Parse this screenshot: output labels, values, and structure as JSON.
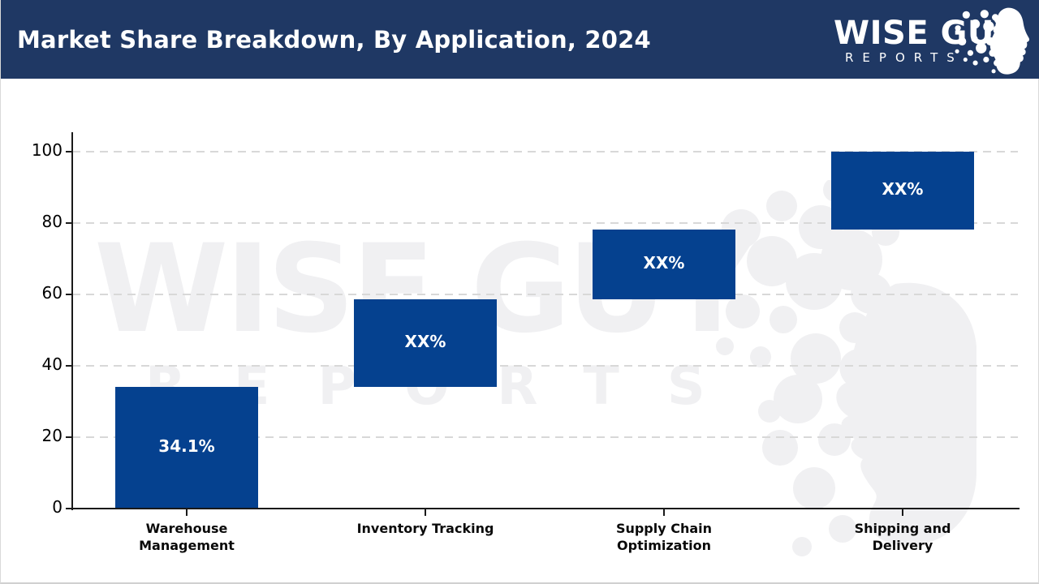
{
  "header": {
    "title": "Market Share Breakdown, By Application, 2024",
    "logo": {
      "wordmark": "WISE GUY",
      "subtext": "REPORTS"
    }
  },
  "watermark": {
    "line1": "WISE GUY",
    "line2": "REPORTS"
  },
  "chart_data": {
    "type": "bar",
    "subtype": "waterfall",
    "title": "Market Share Breakdown, By Application, 2024",
    "categories": [
      "Warehouse Management",
      "Inventory Tracking",
      "Supply Chain Optimization",
      "Shipping and Delivery"
    ],
    "category_label_lines": [
      [
        "Warehouse",
        "Management"
      ],
      [
        "Inventory Tracking"
      ],
      [
        "Supply Chain",
        "Optimization"
      ],
      [
        "Shipping and",
        "Delivery"
      ]
    ],
    "segments": [
      {
        "category": "Warehouse Management",
        "start": 0,
        "end": 34.1,
        "value": 34.1,
        "label": "34.1%"
      },
      {
        "category": "Inventory Tracking",
        "start": 34.1,
        "end": 58.6,
        "value": 24.5,
        "label": "XX%"
      },
      {
        "category": "Supply Chain Optimization",
        "start": 58.6,
        "end": 78.3,
        "value": 19.7,
        "label": "XX%"
      },
      {
        "category": "Shipping and Delivery",
        "start": 78.3,
        "end": 100,
        "value": 21.7,
        "label": "XX%"
      }
    ],
    "xlabel": "",
    "ylabel": "",
    "ylim": [
      0,
      106
    ],
    "yticks": [
      0,
      20,
      40,
      60,
      80,
      100
    ],
    "grid": "horizontal-dashed",
    "legend": "none",
    "bar_color": "#05418F",
    "bar_label_color": "#FFFFFF"
  },
  "colors": {
    "header_bg": "#1F3864",
    "header_text": "#FFFFFF",
    "bar": "#05418F",
    "grid_line": "#D8D8D8",
    "axis_line": "#1A1A1A",
    "tick_text": "#000000",
    "watermark": "#F0F0F2",
    "page_bg": "#FFFFFF"
  }
}
